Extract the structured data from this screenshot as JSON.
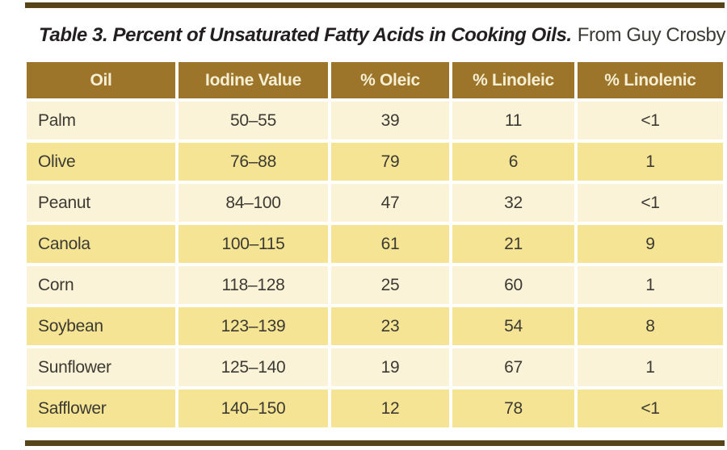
{
  "title": {
    "label": "Table 3. Percent of Unsaturated Fatty Acids in Cooking Oils.",
    "source": "From Guy Crosby"
  },
  "colors": {
    "rule_brown": "#584419",
    "header_brown": "#9c742a",
    "header_text": "#f6efd3",
    "row_light": "#fbf3d8",
    "row_dark": "#f4e494",
    "cell_text": "#3c3a33",
    "title_text": "#231f20"
  },
  "table": {
    "headers": [
      "Oil",
      "Iodine Value",
      "% Oleic",
      "% Linoleic",
      "% Linolenic"
    ],
    "rows": [
      {
        "oil": "Palm",
        "iodine_value": "50–55",
        "oleic": "39",
        "linoleic": "11",
        "linolenic": "<1",
        "shade": "light"
      },
      {
        "oil": "Olive",
        "iodine_value": "76–88",
        "oleic": "79",
        "linoleic": "6",
        "linolenic": "1",
        "shade": "dark"
      },
      {
        "oil": "Peanut",
        "iodine_value": "84–100",
        "oleic": "47",
        "linoleic": "32",
        "linolenic": "<1",
        "shade": "light"
      },
      {
        "oil": "Canola",
        "iodine_value": "100–115",
        "oleic": "61",
        "linoleic": "21",
        "linolenic": "9",
        "shade": "dark"
      },
      {
        "oil": "Corn",
        "iodine_value": "118–128",
        "oleic": "25",
        "linoleic": "60",
        "linolenic": "1",
        "shade": "light"
      },
      {
        "oil": "Soybean",
        "iodine_value": "123–139",
        "oleic": "23",
        "linoleic": "54",
        "linolenic": "8",
        "shade": "dark"
      },
      {
        "oil": "Sunflower",
        "iodine_value": "125–140",
        "oleic": "19",
        "linoleic": "67",
        "linolenic": "1",
        "shade": "light"
      },
      {
        "oil": "Safflower",
        "iodine_value": "140–150",
        "oleic": "12",
        "linoleic": "78",
        "linolenic": "<1",
        "shade": "dark"
      }
    ],
    "column_keys": [
      "oil",
      "iodine_value",
      "oleic",
      "linoleic",
      "linolenic"
    ]
  }
}
